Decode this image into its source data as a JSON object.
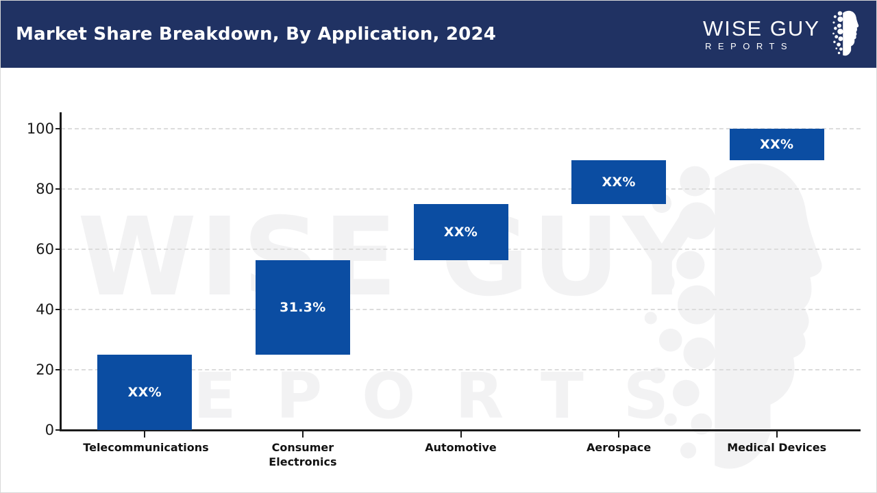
{
  "header": {
    "title": "Market Share Breakdown, By Application, 2024",
    "logo_line1": "WISE GUY",
    "logo_line2": "REPORTS"
  },
  "watermark": {
    "line1": "WISE GUY",
    "line2": "REPORTS"
  },
  "colors": {
    "header_bg": "#203263",
    "bar": "#0b4da2",
    "bar_label": "#ffffff",
    "axis": "#1a1a1a",
    "grid": "#dcdcdc",
    "watermark": "#f2f2f3"
  },
  "chart_data": {
    "type": "bar",
    "variant": "waterfall",
    "title": "Market Share Breakdown, By Application, 2024",
    "categories": [
      "Telecommunications",
      "Consumer Electronics",
      "Automotive",
      "Aerospace",
      "Medical Devices"
    ],
    "series": [
      {
        "name": "Market share (%)",
        "bases": [
          0,
          25,
          56.3,
          75,
          89.5
        ],
        "values": [
          25,
          31.3,
          18.7,
          14.5,
          10.5
        ]
      }
    ],
    "bar_labels": [
      "XX%",
      "31.3%",
      "XX%",
      "XX%",
      "XX%"
    ],
    "xlabel": "",
    "ylabel": "",
    "ylim": [
      0,
      100
    ],
    "yticks": [
      0,
      20,
      40,
      60,
      80,
      100
    ],
    "grid": "horizontal-dashed",
    "legend": "none",
    "bar_color": "#0b4da2"
  }
}
